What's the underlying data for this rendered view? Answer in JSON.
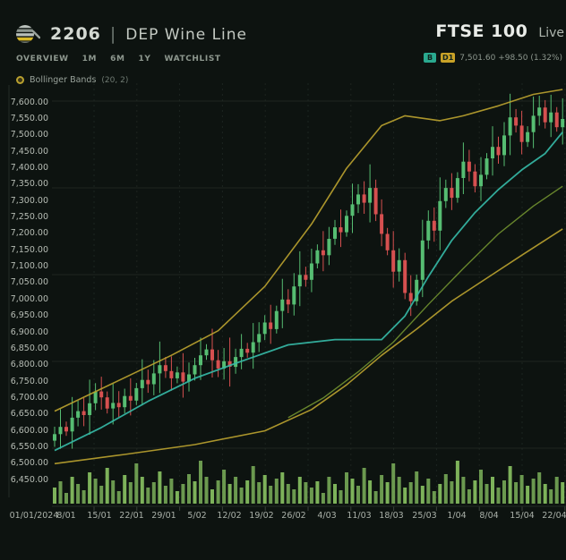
{
  "header": {
    "brand": "2206",
    "separator": "|",
    "subtitle": "DEP Wine Line",
    "right_title": "FTSE 100",
    "right_suffix": "Live"
  },
  "toolbar": {
    "items": [
      "Overview",
      "1M",
      "6M",
      "1Y",
      "Watchlist"
    ]
  },
  "stats": {
    "badge_teal": "B",
    "badge_yellow": "D1",
    "text": "7,501.60  +98.50 (1.32%)"
  },
  "legend": {
    "indicator": "Bollinger Bands",
    "params": "(20, 2)"
  },
  "colors": {
    "background": "#0d1310",
    "candle_up": "#56bd72",
    "candle_down": "#d65050",
    "volume": "#7db25a",
    "band_yellow": "#b9a12f",
    "band_teal": "#35b9a6",
    "band_olive": "#6f8f2f",
    "grid": "#2a322c",
    "axis_text": "#b6bcb4"
  },
  "chart_data": {
    "type": "candlestick+volume",
    "title": "FTSE 100 Live",
    "legend_entries": [
      "Bollinger Bands"
    ],
    "grid": "on",
    "price_axis": {
      "min": 6400,
      "max": 7640
    },
    "y_ticks": [
      7600,
      7550,
      7500,
      7450,
      7400,
      7350,
      7300,
      7250,
      7200,
      7150,
      7100,
      7050,
      7000,
      6950,
      6900,
      6850,
      6800,
      6750,
      6700,
      6650,
      6600,
      6550,
      6500,
      6450
    ],
    "y_tick_labels": [
      "7,600.00",
      "7,550.00",
      "7,500.00",
      "7,450.00",
      "7,400.00",
      "7,350.00",
      "7,300.00",
      "7,250.00",
      "7,200.00",
      "7,150.00",
      "7,100.00",
      "7,050.00",
      "7,000.00",
      "6,950.00",
      "6,900.00",
      "6,850.00",
      "6,800.00",
      "6,750.00",
      "6,700.00",
      "6,650.00",
      "6,600.00",
      "6,550.00",
      "6,500.00",
      "6,450.00"
    ],
    "x_labels": [
      "01/01/2024",
      "8/01",
      "15/01",
      "22/01",
      "29/01",
      "5/02",
      "12/02",
      "19/02",
      "26/02",
      "4/03",
      "11/03",
      "18/03",
      "25/03",
      "1/04",
      "8/04",
      "15/04",
      "22/04"
    ],
    "open_first": 6570,
    "closes": [
      6590,
      6612,
      6598,
      6640,
      6660,
      6648,
      6684,
      6720,
      6702,
      6668,
      6685,
      6672,
      6706,
      6692,
      6730,
      6755,
      6742,
      6775,
      6800,
      6782,
      6760,
      6778,
      6750,
      6772,
      6800,
      6830,
      6848,
      6815,
      6790,
      6812,
      6795,
      6825,
      6850,
      6838,
      6870,
      6895,
      6930,
      6910,
      6965,
      7000,
      6985,
      7040,
      7075,
      7060,
      7110,
      7150,
      7135,
      7185,
      7220,
      7205,
      7255,
      7290,
      7320,
      7295,
      7340,
      7260,
      7200,
      7150,
      7085,
      7120,
      7020,
      6995,
      7060,
      7180,
      7240,
      7210,
      7300,
      7340,
      7310,
      7370,
      7420,
      7390,
      7345,
      7380,
      7430,
      7465,
      7440,
      7500,
      7555,
      7530,
      7480,
      7510,
      7560,
      7585,
      7540,
      7570,
      7525,
      7550
    ],
    "wick_pattern": [
      25,
      60,
      18,
      70,
      35,
      45,
      80,
      28,
      50,
      20,
      65,
      40
    ],
    "volume_pattern": [
      18,
      25,
      12,
      30,
      22,
      15,
      35,
      28,
      20,
      40,
      26,
      14,
      32,
      24,
      45,
      30,
      18,
      24,
      36,
      20,
      28,
      14,
      22,
      33,
      25,
      48,
      30,
      16,
      26,
      38,
      22,
      30,
      18,
      26,
      42,
      24,
      32,
      20,
      28,
      35,
      22,
      16,
      30,
      24
    ],
    "bands": {
      "upper_yellow": [
        [
          0,
          6660
        ],
        [
          10,
          6745
        ],
        [
          20,
          6830
        ],
        [
          28,
          6905
        ],
        [
          36,
          7040
        ],
        [
          44,
          7230
        ],
        [
          50,
          7400
        ],
        [
          56,
          7530
        ],
        [
          60,
          7560
        ],
        [
          66,
          7545
        ],
        [
          70,
          7560
        ],
        [
          76,
          7590
        ],
        [
          82,
          7625
        ],
        [
          87,
          7640
        ]
      ],
      "middle_teal": [
        [
          0,
          6540
        ],
        [
          8,
          6610
        ],
        [
          16,
          6690
        ],
        [
          24,
          6760
        ],
        [
          32,
          6812
        ],
        [
          40,
          6862
        ],
        [
          48,
          6878
        ],
        [
          56,
          6878
        ],
        [
          60,
          6950
        ],
        [
          64,
          7070
        ],
        [
          68,
          7180
        ],
        [
          72,
          7265
        ],
        [
          76,
          7335
        ],
        [
          80,
          7395
        ],
        [
          84,
          7445
        ],
        [
          87,
          7510
        ]
      ],
      "mid_olive": [
        [
          40,
          6640
        ],
        [
          46,
          6700
        ],
        [
          52,
          6780
        ],
        [
          58,
          6870
        ],
        [
          64,
          6985
        ],
        [
          70,
          7095
        ],
        [
          76,
          7200
        ],
        [
          82,
          7285
        ],
        [
          87,
          7345
        ]
      ],
      "lower_yellow": [
        [
          0,
          6500
        ],
        [
          12,
          6528
        ],
        [
          24,
          6558
        ],
        [
          36,
          6600
        ],
        [
          44,
          6665
        ],
        [
          50,
          6740
        ],
        [
          56,
          6830
        ],
        [
          62,
          6910
        ],
        [
          68,
          6995
        ],
        [
          74,
          7065
        ],
        [
          80,
          7135
        ],
        [
          87,
          7215
        ]
      ]
    }
  }
}
